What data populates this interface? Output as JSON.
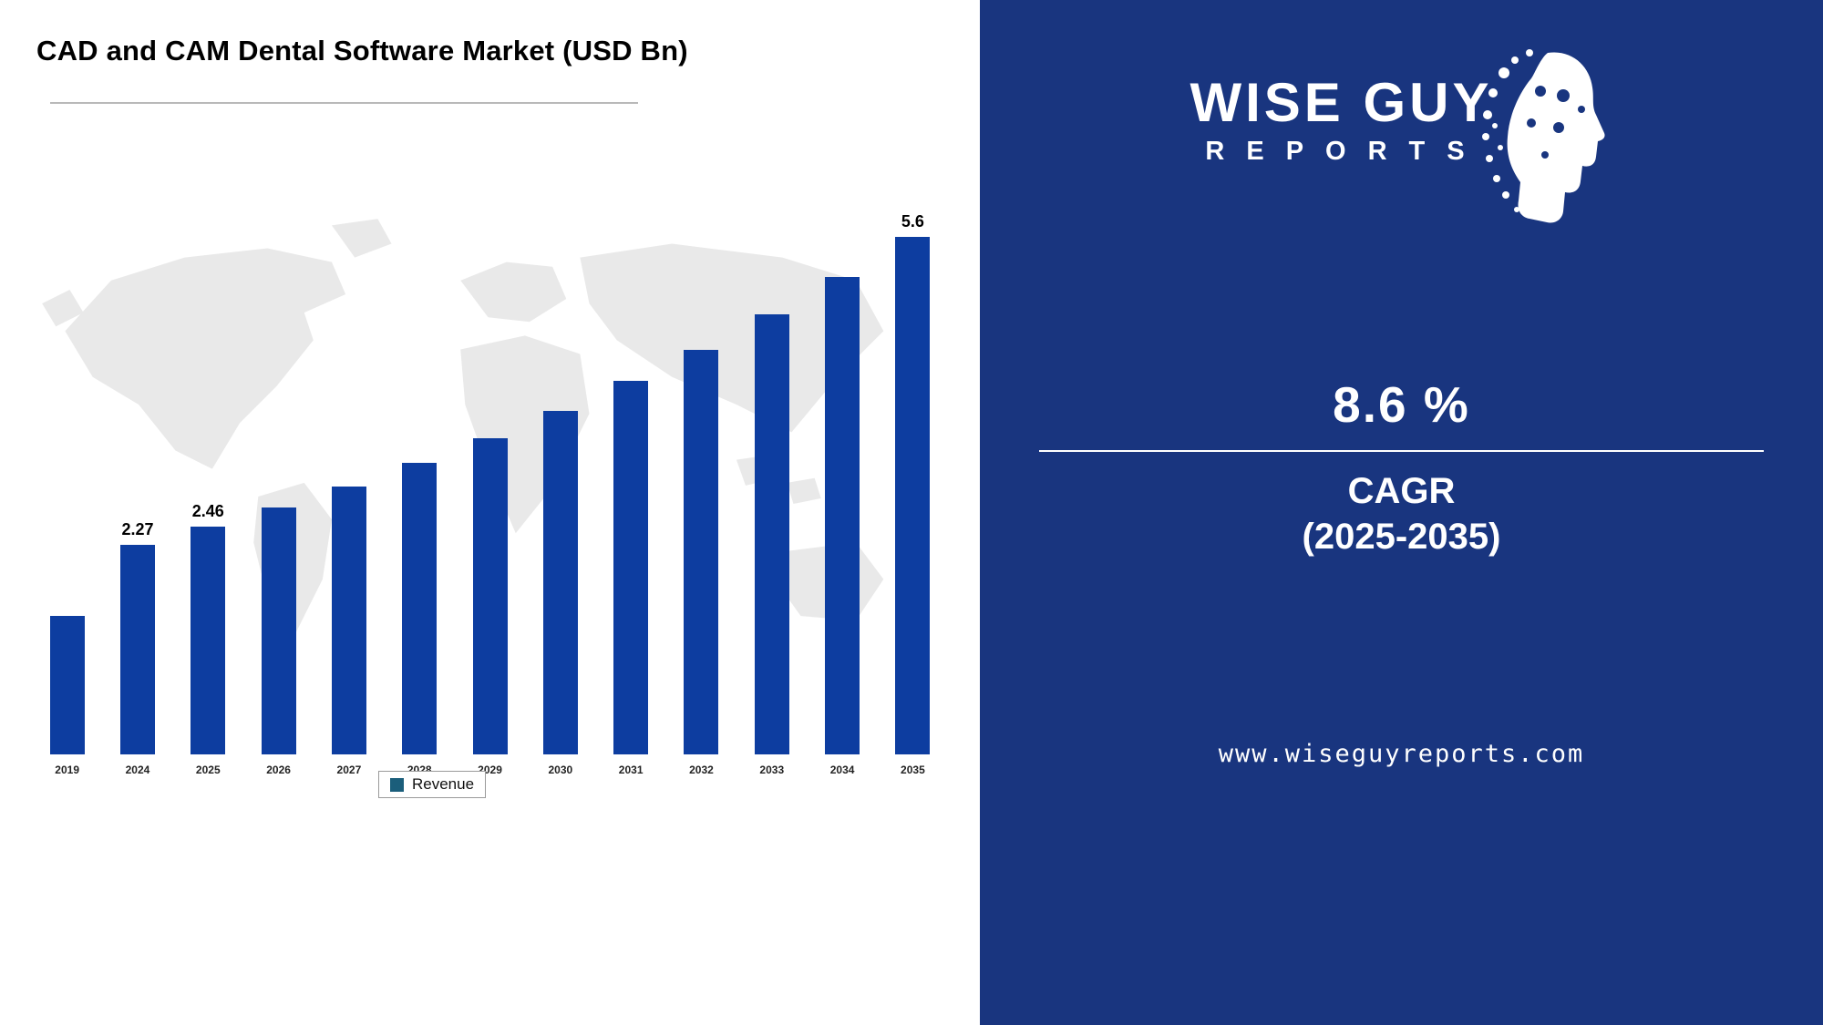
{
  "title": "CAD and CAM Dental Software Market (USD Bn)",
  "legend": {
    "label": "Revenue",
    "color": "#1b5e7b"
  },
  "chart_data": {
    "type": "bar",
    "title": "CAD and CAM Dental Software Market (USD Bn)",
    "categories": [
      "2019",
      "2024",
      "2025",
      "2026",
      "2027",
      "2028",
      "2029",
      "2030",
      "2031",
      "2032",
      "2033",
      "2034",
      "2035"
    ],
    "values": [
      1.5,
      2.27,
      2.46,
      2.67,
      2.9,
      3.15,
      3.42,
      3.72,
      4.04,
      4.38,
      4.76,
      5.17,
      5.6
    ],
    "bar_labels": [
      "",
      "2.27",
      "2.46",
      "",
      "",
      "",
      "",
      "",
      "",
      "",
      "",
      "",
      "5.6"
    ],
    "xlabel": "",
    "ylabel": "",
    "ylim": [
      0,
      5.6
    ],
    "grid": false,
    "legend_position": "bottom",
    "legend_entries": [
      "Revenue"
    ],
    "bar_color": "#0d3da0"
  },
  "sidebar": {
    "background": "#19357f",
    "logo_line1": "WISE GUY",
    "logo_line2": "REPORTS",
    "cagr_value": "8.6 %",
    "cagr_line1": "CAGR",
    "cagr_line2": "(2025-2035)",
    "website": "www.wiseguyreports.com"
  }
}
